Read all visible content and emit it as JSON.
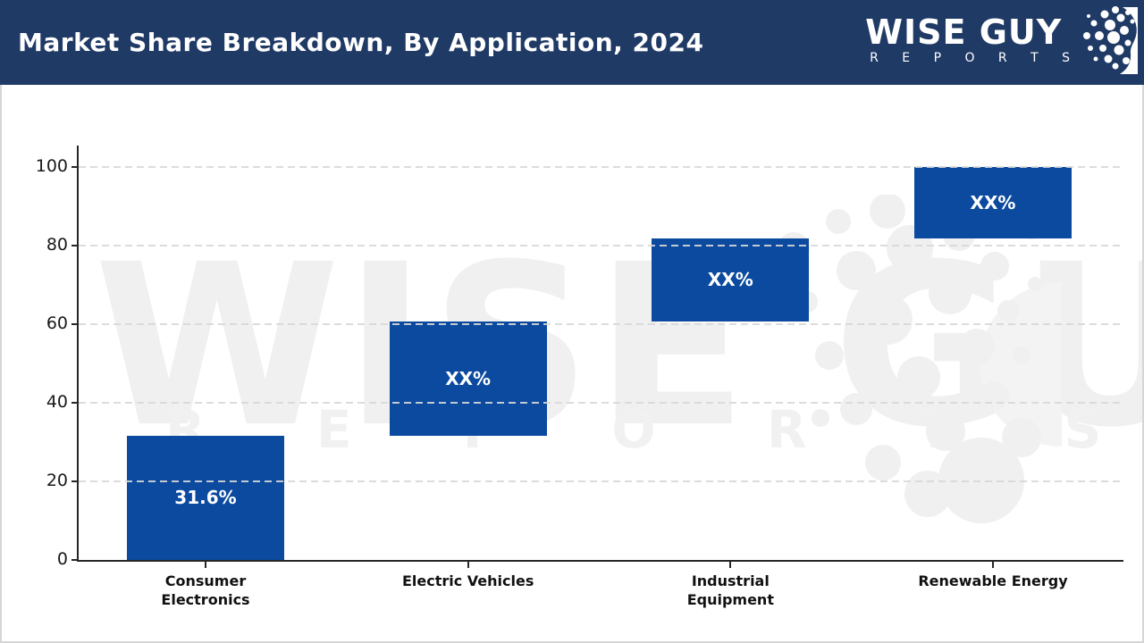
{
  "header": {
    "title": "Market Share Breakdown, By Application, 2024",
    "logo": {
      "name": "WISE GUY",
      "sub": "R E P O R T S"
    }
  },
  "watermark": {
    "name": "WISE GUY",
    "sub": "R E P O R T S"
  },
  "chart_data": {
    "type": "bar",
    "subtype": "waterfall",
    "title": "Market Share Breakdown, By Application, 2024",
    "categories": [
      [
        "Consumer",
        "Electronics"
      ],
      [
        "Electric Vehicles"
      ],
      [
        "Industrial",
        "Equipment"
      ],
      [
        "Renewable Energy"
      ]
    ],
    "segments": [
      {
        "start": 0,
        "end": 31.6,
        "label": "31.6%"
      },
      {
        "start": 31.6,
        "end": 60.7,
        "label": "XX%"
      },
      {
        "start": 60.7,
        "end": 81.8,
        "label": "XX%"
      },
      {
        "start": 81.8,
        "end": 100,
        "label": "XX%"
      }
    ],
    "yticks": [
      0,
      20,
      40,
      60,
      80,
      100
    ],
    "ylim": [
      0,
      105
    ],
    "xlabel": "",
    "ylabel": "",
    "grid": "horizontal-dashed",
    "legend": false,
    "colors": {
      "bar": "#0b4a9f",
      "bar_label": "#ffffff",
      "header_bg": "#203a66",
      "watermark": "#f0f0f0",
      "gridline": "#d8d8d8",
      "axis": "#262626",
      "edge_border": "#d6d6d6"
    }
  }
}
